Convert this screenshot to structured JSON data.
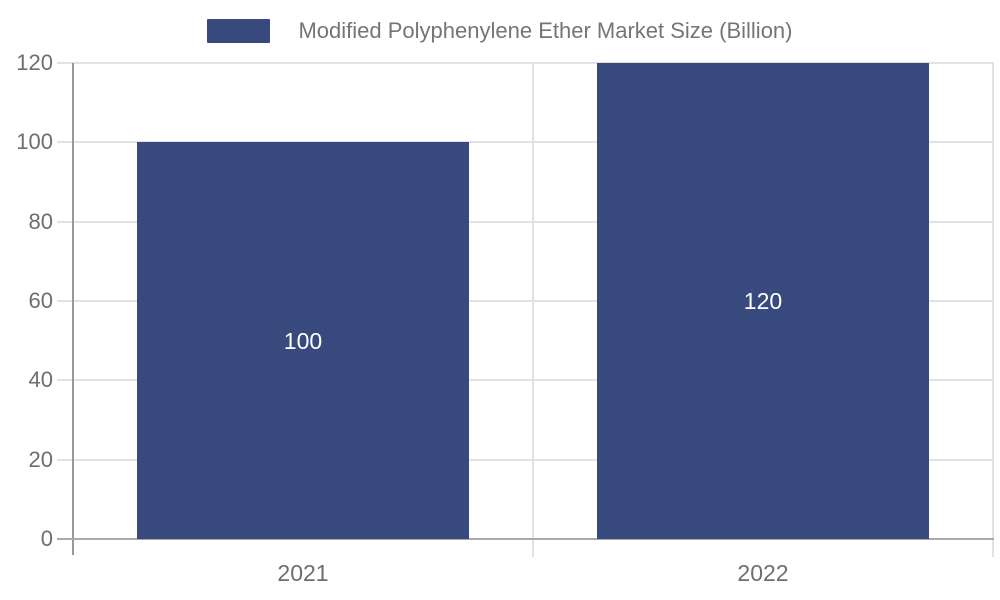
{
  "legend": {
    "label": "Modified Polyphenylene Ether Market Size (Billion)"
  },
  "chart_data": {
    "type": "bar",
    "title": "",
    "categories": [
      "2021",
      "2022"
    ],
    "series": [
      {
        "name": "Modified Polyphenylene Ether Market Size (Billion)",
        "values": [
          100,
          120
        ]
      }
    ],
    "data_labels": [
      "100",
      "120"
    ],
    "yticks": [
      0,
      20,
      40,
      60,
      80,
      100,
      120
    ],
    "ylim": [
      0,
      120
    ],
    "xlabel": "",
    "ylabel": "",
    "grid": true,
    "legend_position": "top-center",
    "data_label_position": "inside-center"
  },
  "colors": {
    "bar": "#384A7D",
    "gridline": "#e2e2e2",
    "axis_line": "#999999",
    "baseline": "#a9a9a9",
    "tick_text": "#6e6e6e",
    "legend_text": "#757575",
    "data_label_text": "#ffffff",
    "background": "#ffffff"
  }
}
